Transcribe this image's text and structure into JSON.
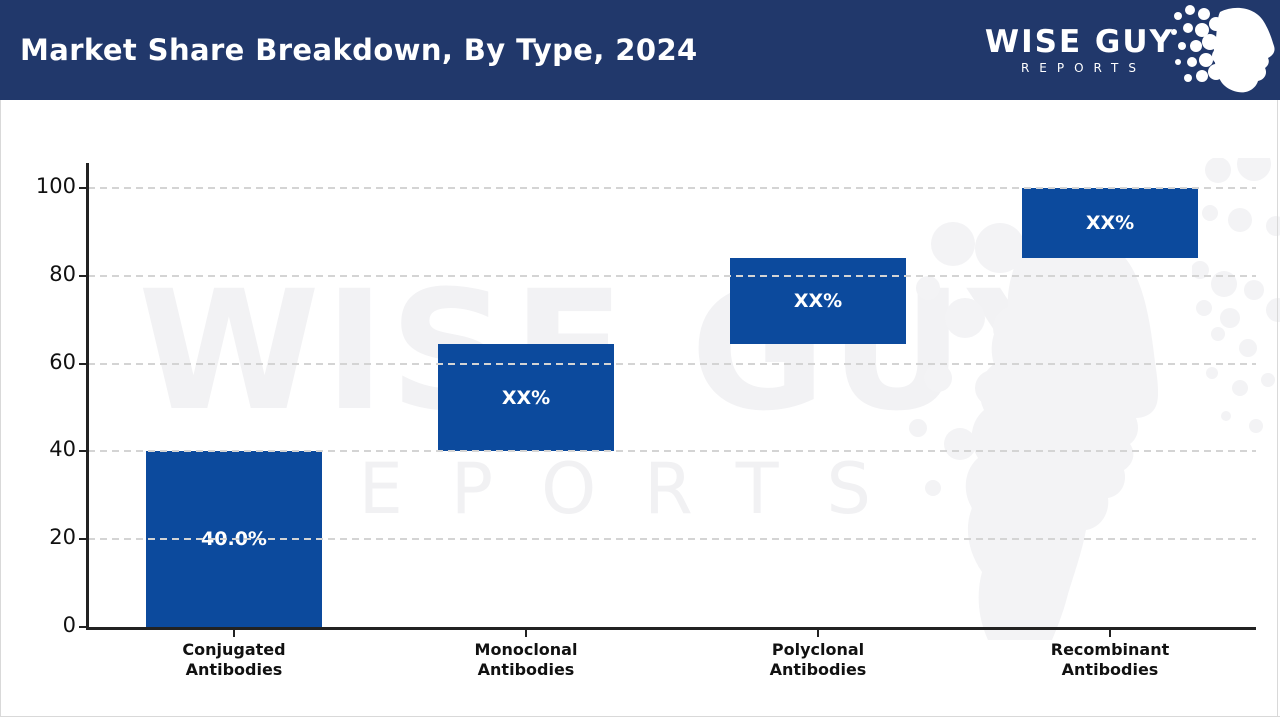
{
  "header": {
    "title": "Market Share Breakdown, By Type, 2024",
    "logo": {
      "primary": "WISE GUY",
      "secondary": "REPORTS"
    }
  },
  "watermark": {
    "primary": "WISE GUY",
    "secondary": "REPORTS"
  },
  "chart_data": {
    "type": "bar",
    "variant": "waterfall",
    "title": "Market Share Breakdown, By Type, 2024",
    "categories": [
      "Conjugated Antibodies",
      "Monoclonal Antibodies",
      "Polyclonal Antibodies",
      "Recombinant Antibodies"
    ],
    "category_lines": [
      [
        "Conjugated",
        "Antibodies"
      ],
      [
        "Monoclonal",
        "Antibodies"
      ],
      [
        "Polyclonal",
        "Antibodies"
      ],
      [
        "Recombinant",
        "Antibodies"
      ]
    ],
    "segments": [
      {
        "category": "Conjugated Antibodies",
        "start": 0,
        "end": 40,
        "label": "40.0%"
      },
      {
        "category": "Monoclonal Antibodies",
        "start": 40,
        "end": 64.5,
        "label": "XX%"
      },
      {
        "category": "Polyclonal Antibodies",
        "start": 64.5,
        "end": 84,
        "label": "XX%"
      },
      {
        "category": "Recombinant Antibodies",
        "start": 84,
        "end": 100,
        "label": "XX%"
      }
    ],
    "yticks": [
      0,
      20,
      40,
      60,
      80,
      100
    ],
    "ytick_labels": [
      "0",
      "20",
      "40",
      "60",
      "80",
      "100"
    ],
    "ylim": [
      0,
      105.8
    ],
    "xlabel": "",
    "ylabel": "",
    "grid": "horizontal-dashed",
    "legend": "none",
    "bar_color": "#0C4A9D",
    "bar_label_color": "#FFFFFF"
  },
  "colors": {
    "header_bg": "#21386B",
    "bar": "#0C4A9D",
    "axis": "#222222",
    "gridline": "#D4D4D4",
    "watermark": "#F2F2F4",
    "text": "#111111"
  }
}
